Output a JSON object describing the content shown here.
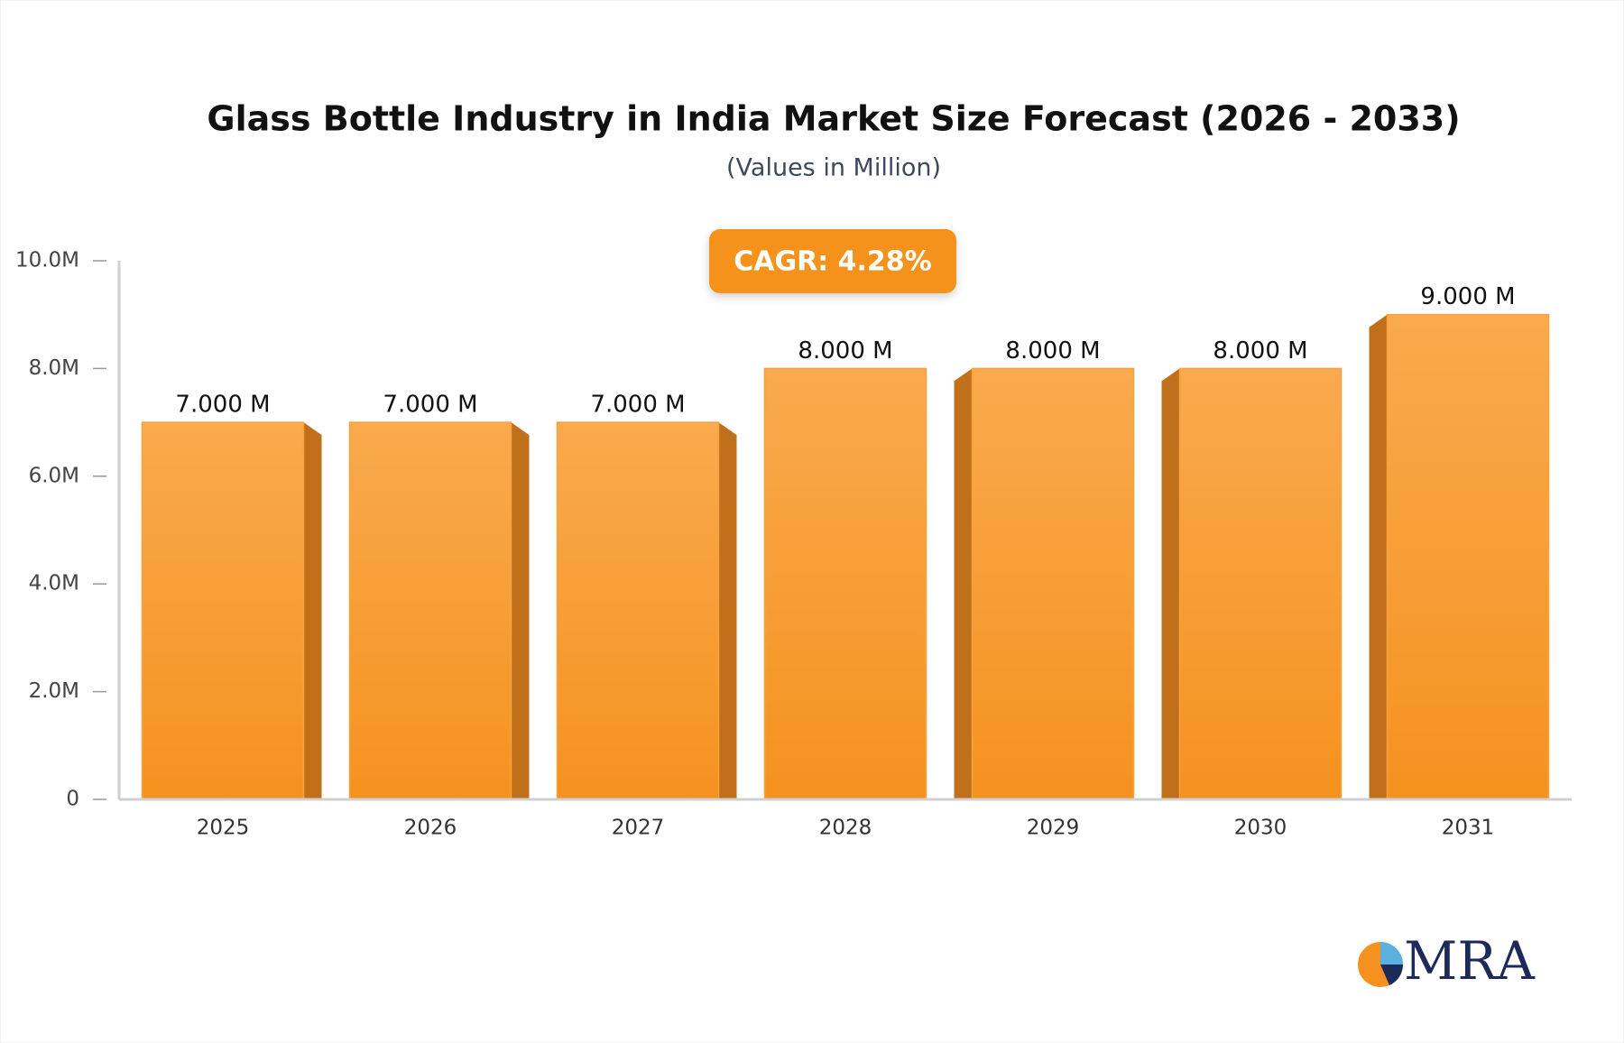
{
  "chart_data": {
    "type": "bar",
    "title": "Glass Bottle Industry in India Market Size Forecast (2026 - 2033)",
    "subtitle": "(Values in Million)",
    "annotation": "CAGR: 4.28%",
    "brand": "MRA",
    "categories": [
      "2025",
      "2026",
      "2027",
      "2028",
      "2029",
      "2030",
      "2031"
    ],
    "values": [
      7,
      7,
      7,
      8,
      8,
      8,
      9
    ],
    "value_labels": [
      "7.000 M",
      "7.000 M",
      "7.000 M",
      "8.000 M",
      "8.000 M",
      "8.000 M",
      "9.000 M"
    ],
    "color": "#f7a23c",
    "ylim": [
      0,
      10
    ],
    "yticks": [
      0,
      {
        "value": 2,
        "label": "2.0M"
      },
      {
        "value": 4,
        "label": "4.0M"
      },
      {
        "value": 6,
        "label": "6.0M"
      },
      {
        "value": 8,
        "label": "8.0M"
      },
      {
        "value": 10,
        "label": "10.0M"
      }
    ],
    "grid": false
  }
}
